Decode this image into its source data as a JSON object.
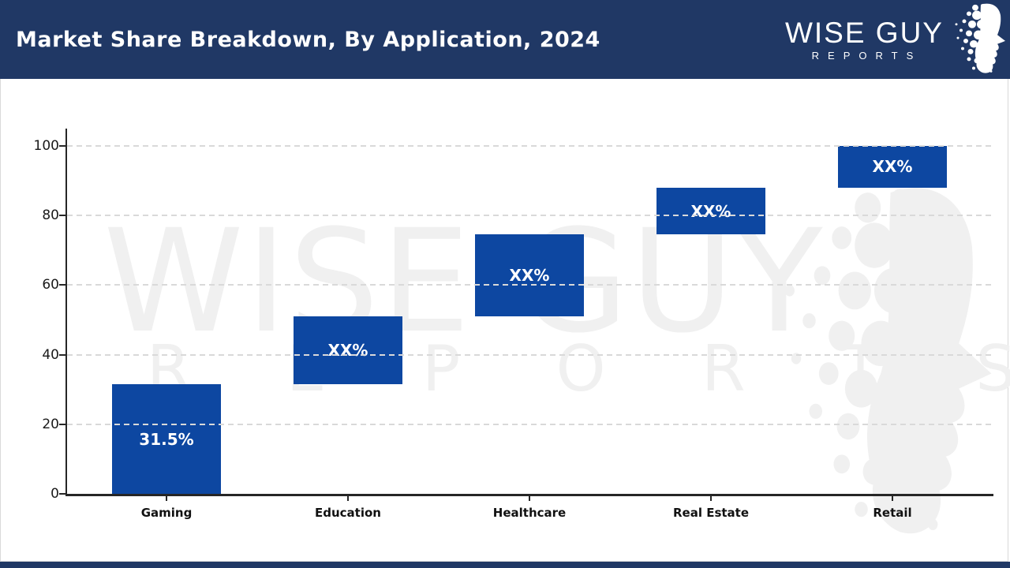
{
  "header": {
    "title": "Market Share Breakdown, By Application, 2024",
    "logo": {
      "line1": "WISE GUY",
      "line2": "REPORTS"
    }
  },
  "watermark": {
    "line1": "WISE GUY",
    "line2": "R E P O R T S"
  },
  "colors": {
    "header_navy": "#203865",
    "bar_blue": "#0d47a1",
    "grid_gray": "#d9d9d9",
    "axis_dark": "#262626",
    "watermark_gray": "#f0f0f0",
    "bar_label_white": "#ffffff"
  },
  "chart_data": {
    "type": "bar",
    "variant": "waterfall",
    "title": "Market Share Breakdown, By Application, 2024",
    "categories": [
      "Gaming",
      "Education",
      "Healthcare",
      "Real Estate",
      "Retail"
    ],
    "segments": [
      {
        "category": "Gaming",
        "start": 0,
        "end": 31.5,
        "label": "31.5%"
      },
      {
        "category": "Education",
        "start": 31.5,
        "end": 51,
        "label": "XX%"
      },
      {
        "category": "Healthcare",
        "start": 51,
        "end": 74.5,
        "label": "XX%"
      },
      {
        "category": "Real Estate",
        "start": 74.5,
        "end": 88,
        "label": "XX%"
      },
      {
        "category": "Retail",
        "start": 88,
        "end": 100,
        "label": "XX%"
      }
    ],
    "ylim": [
      0,
      100
    ],
    "yticks": [
      0,
      20,
      40,
      60,
      80,
      100
    ],
    "xlabel": "",
    "ylabel": "",
    "grid": "horizontal-dashed",
    "legend": "none",
    "bar_color": "#0d47a1",
    "label_color": "#ffffff"
  }
}
